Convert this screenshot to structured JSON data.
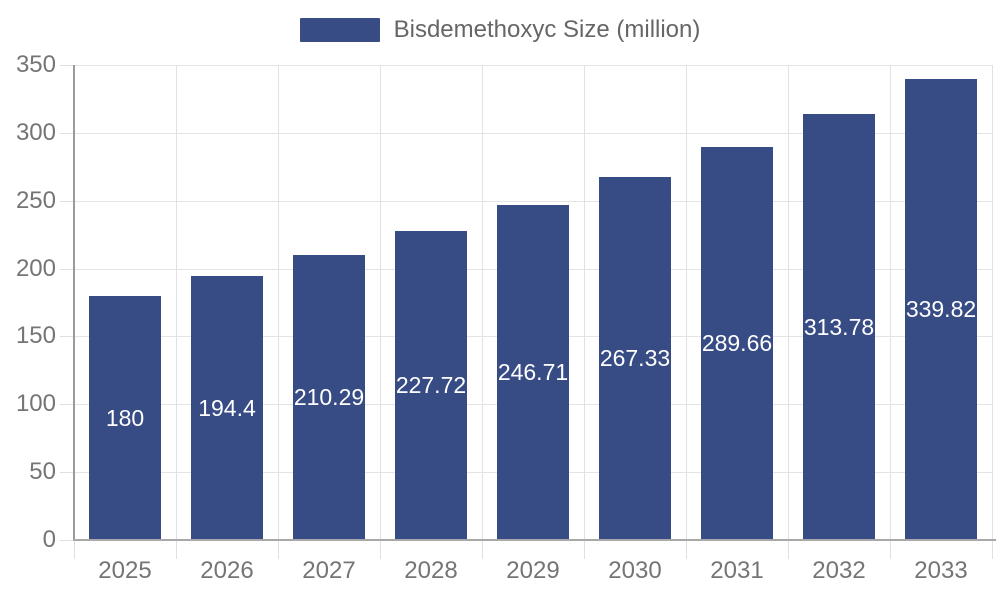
{
  "legend": {
    "items": [
      {
        "label": "Bisdemethoxyc Size (million)",
        "color": "#374B85"
      }
    ]
  },
  "chart_data": {
    "type": "bar",
    "title": "",
    "categories": [
      "2025",
      "2026",
      "2027",
      "2028",
      "2029",
      "2030",
      "2031",
      "2032",
      "2033"
    ],
    "series": [
      {
        "name": "Bisdemethoxyc Size (million)",
        "values": [
          180,
          194.4,
          210.29,
          227.72,
          246.71,
          267.33,
          289.66,
          313.78,
          339.82
        ]
      }
    ],
    "bar_labels": [
      "180",
      "194.4",
      "210.29",
      "227.72",
      "246.71",
      "267.33",
      "289.66",
      "313.78",
      "339.82"
    ],
    "xlabel": "",
    "ylabel": "",
    "ylim": [
      0,
      350
    ],
    "yticks": [
      0,
      50,
      100,
      150,
      200,
      250,
      300,
      350
    ],
    "grid": "on",
    "legend_position": "top-center",
    "bar_label_position": "inside-center",
    "colors": {
      "bar": "#374B85",
      "bar_label_text": "#ffffff",
      "axis_text": "#757575",
      "legend_text": "#666666",
      "axis_line": "#9b9b9b",
      "grid_line": "#e2e2e6"
    }
  }
}
